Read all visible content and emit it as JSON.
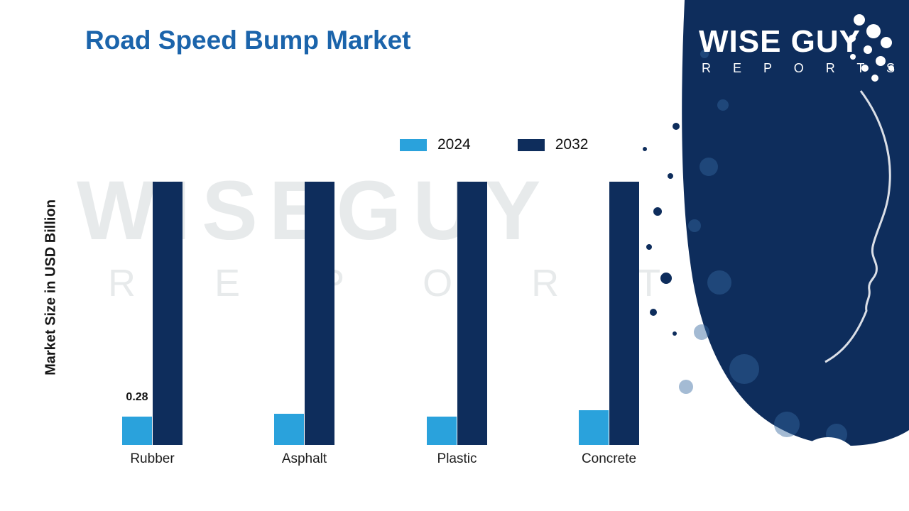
{
  "header": {
    "title": "Road Speed Bump Market"
  },
  "brand": {
    "name": "WISE GUY",
    "sub": "R E P O R T S"
  },
  "watermark": {
    "line1": "WISEGUY",
    "line2": "R E P O R T S"
  },
  "chart_data": {
    "type": "bar",
    "title": "Road Speed Bump Market",
    "categories": [
      "Rubber",
      "Asphalt",
      "Plastic",
      "Concrete"
    ],
    "series": [
      {
        "name": "2024",
        "color": "#2aa2dc",
        "values": [
          0.28,
          0.31,
          0.28,
          0.34
        ]
      },
      {
        "name": "2032",
        "color": "#0e2d5c",
        "values": [
          2.6,
          2.6,
          2.6,
          2.6
        ]
      }
    ],
    "xlabel": "",
    "ylabel": "Market Size in USD Billion",
    "ylim": [
      0,
      2.6
    ],
    "grid": false,
    "legend_position": "top",
    "annotations": [
      {
        "series": "2024",
        "category": "Rubber",
        "text": "0.28"
      }
    ]
  }
}
